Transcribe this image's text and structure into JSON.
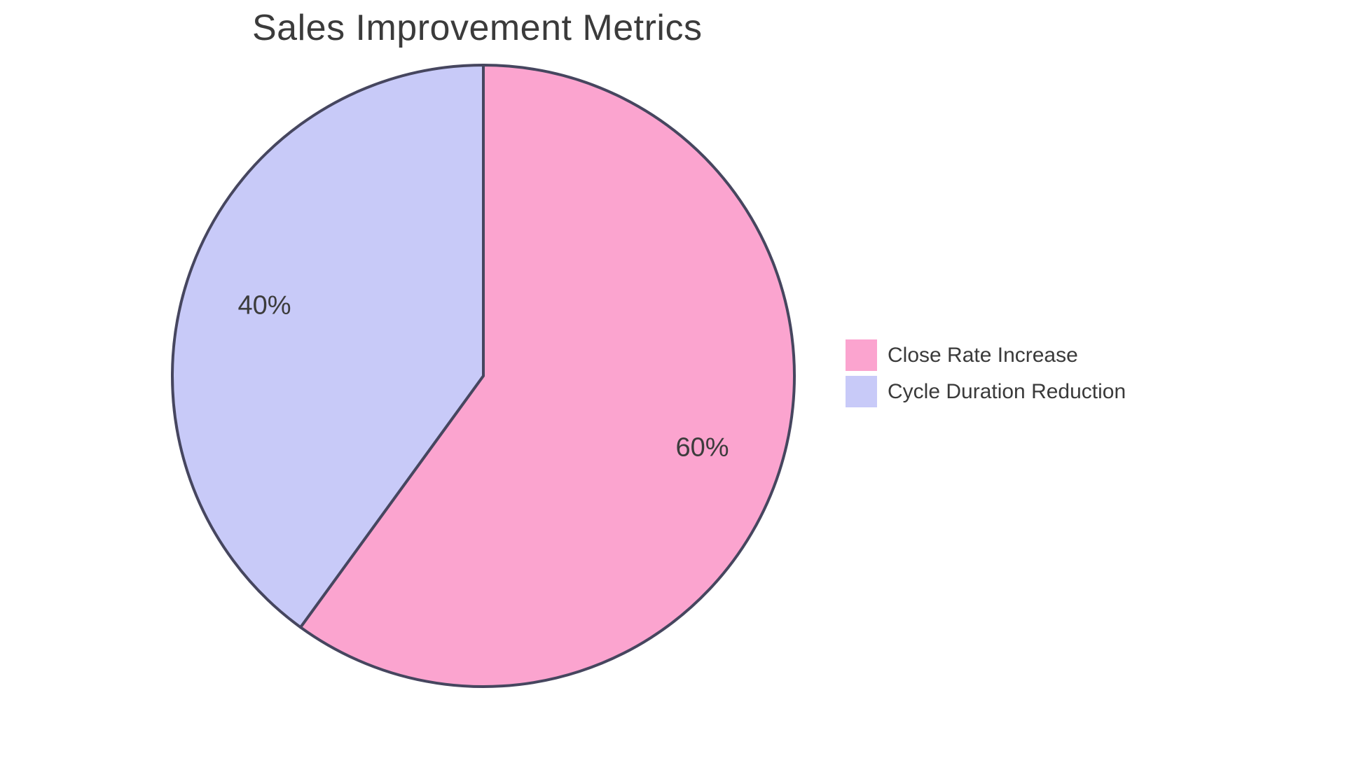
{
  "title": "Sales Improvement Metrics",
  "chart_data": {
    "type": "pie",
    "title": "Sales Improvement Metrics",
    "categories": [
      "Close Rate Increase",
      "Cycle Duration Reduction"
    ],
    "values": [
      60,
      40
    ],
    "slice_labels": [
      "60%",
      "40%"
    ],
    "colors": [
      "#FBA4CF",
      "#C8CAF8"
    ],
    "stroke_color": "#46465F",
    "label_color": "#3C3C3C",
    "start_angle": "top",
    "direction": "clockwise",
    "legend_position": "right",
    "background": "#FFFFFF"
  },
  "legend": {
    "items": [
      {
        "label": "Close Rate Increase",
        "color": "#FBA4CF"
      },
      {
        "label": "Cycle Duration Reduction",
        "color": "#C8CAF8"
      }
    ]
  }
}
